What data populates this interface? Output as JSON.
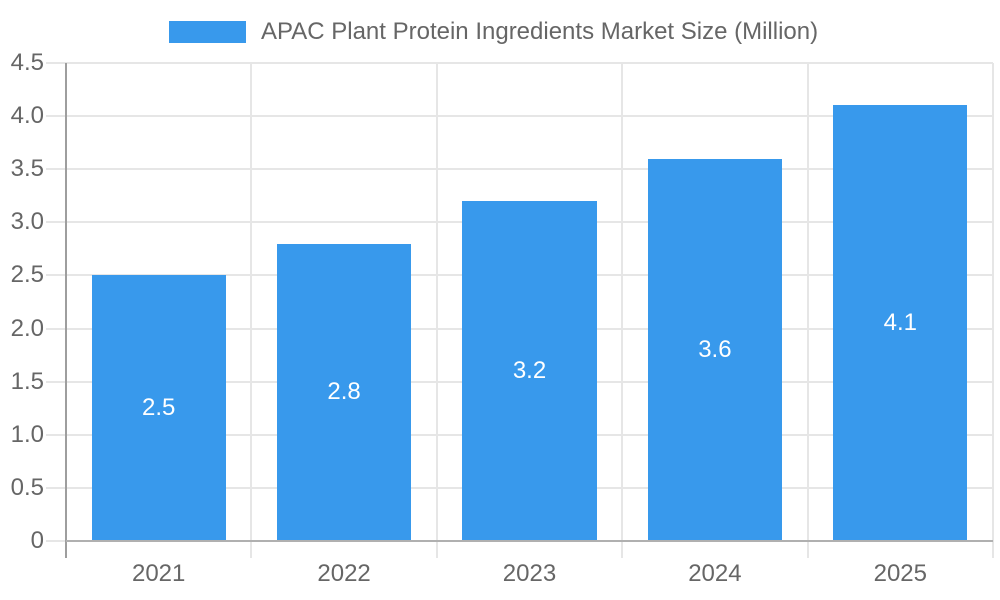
{
  "chart_data": {
    "type": "bar",
    "title": "APAC Plant Protein Ingredients Market Size (Million)",
    "legend_position": "top",
    "categories": [
      "2021",
      "2022",
      "2023",
      "2024",
      "2025"
    ],
    "values": [
      2.5,
      2.8,
      3.2,
      3.6,
      4.1
    ],
    "bar_labels": [
      "2.5",
      "2.8",
      "3.2",
      "3.6",
      "4.1"
    ],
    "xlabel": "",
    "ylabel": "",
    "ylim": [
      0,
      4.5
    ],
    "yticks": {
      "values": [
        0,
        0.5,
        1.0,
        1.5,
        2.0,
        2.5,
        3.0,
        3.5,
        4.0,
        4.5
      ],
      "labels": [
        "0",
        "0.5",
        "1.0",
        "1.5",
        "2.0",
        "2.5",
        "3.0",
        "3.5",
        "4.0",
        "4.5"
      ]
    },
    "grid": true,
    "colors": {
      "bar": "#3899EC",
      "bar_label_text": "#FFFFFF",
      "axis_text": "#666666",
      "legend_text": "#666666",
      "gridline": "#E6E6E6",
      "baseline": "#B0B0B0",
      "axis_line": "#9E9E9E",
      "background": "#FFFFFF"
    }
  }
}
